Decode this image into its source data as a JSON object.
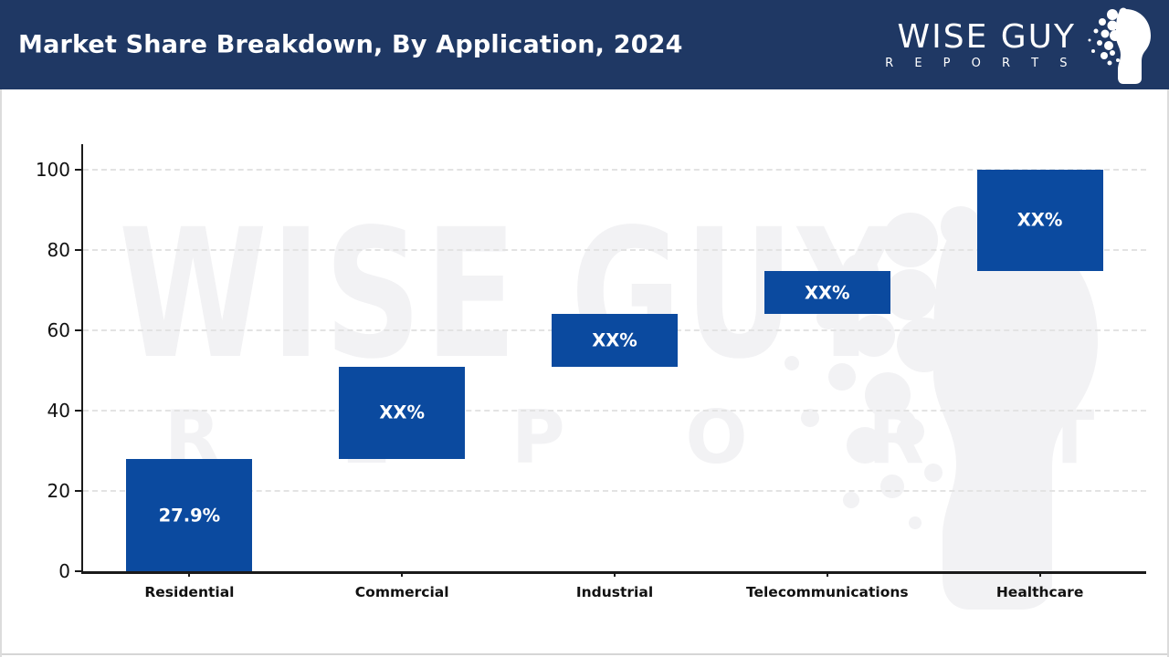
{
  "header": {
    "title": "Market Share Breakdown, By Application, 2024",
    "bg_color": "#1f3864",
    "logo": {
      "line1": "WISE GUY",
      "line2": "R E P O R T S"
    }
  },
  "watermark": {
    "line1": "WISE GUY",
    "line2": "R E P O R T S"
  },
  "chart_data": {
    "type": "bar",
    "subtype": "waterfall",
    "title": "Market Share Breakdown, By Application, 2024",
    "categories": [
      "Residential",
      "Commercial",
      "Industrial",
      "Telecommunications",
      "Healthcare"
    ],
    "segments": [
      [
        0,
        27.9
      ],
      [
        27.9,
        51
      ],
      [
        51,
        64
      ],
      [
        64,
        74.8
      ],
      [
        74.8,
        100
      ]
    ],
    "values": [
      27.9,
      23.1,
      13.0,
      10.8,
      25.2
    ],
    "bar_labels": [
      "27.9%",
      "XX%",
      "XX%",
      "XX%",
      "XX%"
    ],
    "xlabel": "",
    "ylabel": "",
    "yticks": [
      0,
      20,
      40,
      60,
      80,
      100
    ],
    "ylim": [
      0,
      105
    ],
    "grid": true,
    "grid_style": "dashed",
    "legend": "none",
    "bar_color": "#0b4a9f",
    "bar_label_color": "#ffffff",
    "axis_color": "#1a1a1a"
  }
}
